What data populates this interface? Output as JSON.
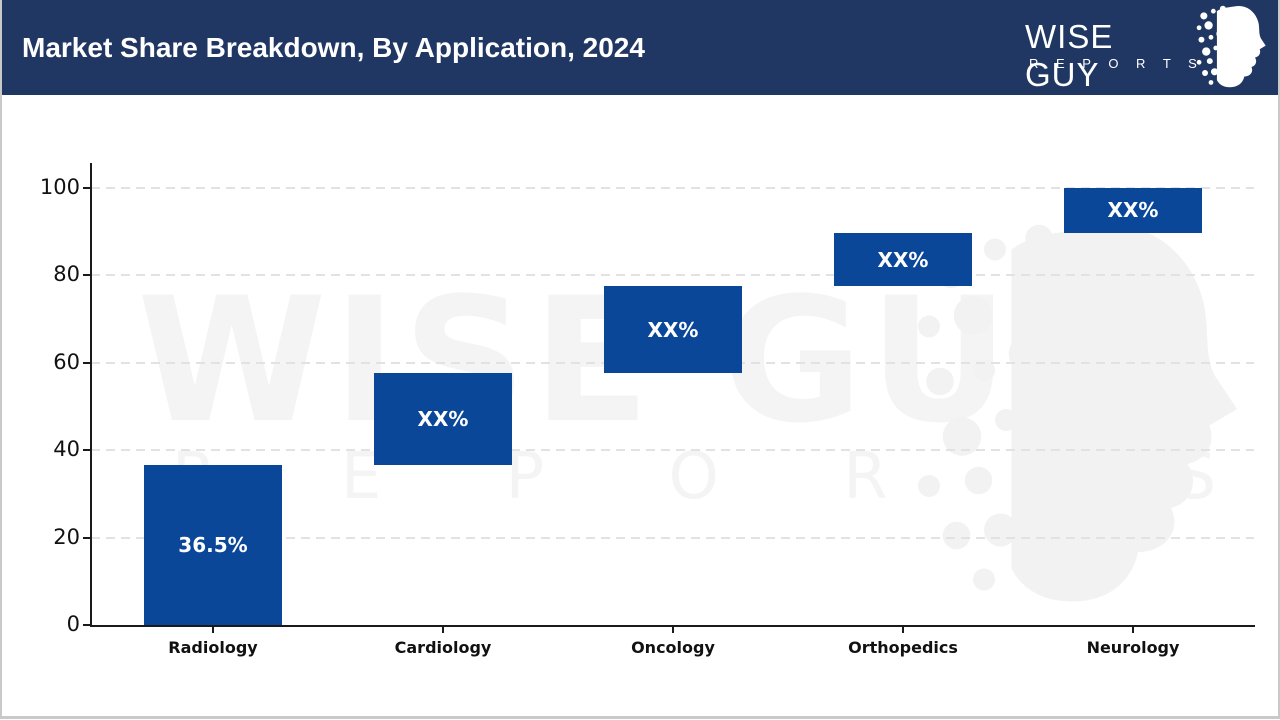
{
  "page": {
    "header": {
      "title": "Market Share Breakdown, By Application, 2024",
      "logo": {
        "line1": "WISE GUY",
        "line2": "R E P O R T S"
      }
    },
    "watermark": {
      "line1": "WISE GUY",
      "line2": "R E P O R T S"
    },
    "colors": {
      "header_bg": "#213763",
      "bar": "#0a4799",
      "grid": "#e2e2e2",
      "axis": "#1a1a1a",
      "watermark": "#f4f4f4",
      "bar_label_text": "#ffffff"
    }
  },
  "chart_data": {
    "type": "bar",
    "subtype": "waterfall",
    "title": "Market Share Breakdown, By Application, 2024",
    "categories": [
      "Radiology",
      "Cardiology",
      "Oncology",
      "Orthopedics",
      "Neurology"
    ],
    "segments": [
      {
        "category": "Radiology",
        "start": 0,
        "end": 36.5,
        "label": "36.5%"
      },
      {
        "category": "Cardiology",
        "start": 36.5,
        "end": 57.5,
        "label": "XX%"
      },
      {
        "category": "Oncology",
        "start": 57.5,
        "end": 77.5,
        "label": "XX%"
      },
      {
        "category": "Orthopedics",
        "start": 77.5,
        "end": 89.5,
        "label": "XX%"
      },
      {
        "category": "Neurology",
        "start": 89.5,
        "end": 100,
        "label": "XX%"
      }
    ],
    "series": [
      {
        "name": "Market Share",
        "values": [
          36.5,
          21,
          20,
          12,
          10.5
        ]
      }
    ],
    "value_labels": [
      "36.5%",
      "XX%",
      "XX%",
      "XX%",
      "XX%"
    ],
    "xlabel": "",
    "ylabel": "",
    "y_ticks": [
      0,
      20,
      40,
      60,
      80,
      100
    ],
    "ylim": [
      0,
      105
    ],
    "grid": "horizontal-dashed",
    "legend": "none"
  }
}
